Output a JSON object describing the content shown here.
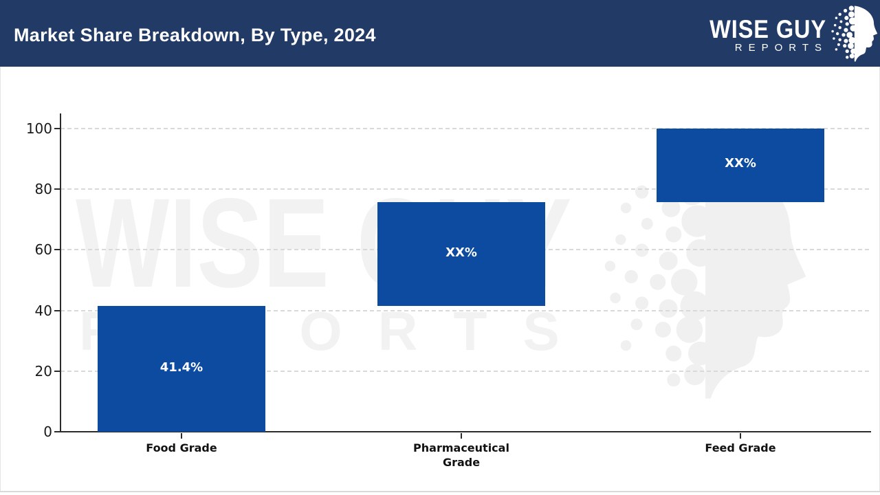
{
  "header": {
    "title": "Market Share Breakdown, By Type, 2024",
    "logo": {
      "line1": "WISE GUY",
      "line2": "REPORTS",
      "head_icon": "dotted-face-profile-icon"
    }
  },
  "watermark": {
    "line1": "WISE GUY",
    "line2": "REPORTS"
  },
  "chart_data": {
    "type": "bar",
    "subtype": "stacked-progression-columns",
    "title": "Market Share Breakdown, By Type, 2024",
    "categories": [
      "Food Grade",
      "Pharmaceutical Grade",
      "Feed Grade"
    ],
    "bars": [
      {
        "category": "Food Grade",
        "start": 0,
        "end": 41.4,
        "label": "41.4%"
      },
      {
        "category": "Pharmaceutical Grade",
        "start": 41.4,
        "end": 75.8,
        "label": "XX%"
      },
      {
        "category": "Feed Grade",
        "start": 75.8,
        "end": 100,
        "label": "XX%"
      }
    ],
    "xlabel": "",
    "ylabel": "",
    "ylim": [
      0,
      100
    ],
    "yticks": [
      0,
      20,
      40,
      60,
      80,
      100
    ],
    "grid": "horizontal-dashed",
    "legend": "none",
    "colors": {
      "header_bg": "#223a66",
      "bar": "#0d4ba0",
      "bar_label": "#ffffff",
      "grid": "#d9d9d9",
      "axis": "#2b2b2b",
      "tick_label": "#1a1a1a",
      "watermark": "#f2f2f2"
    }
  }
}
